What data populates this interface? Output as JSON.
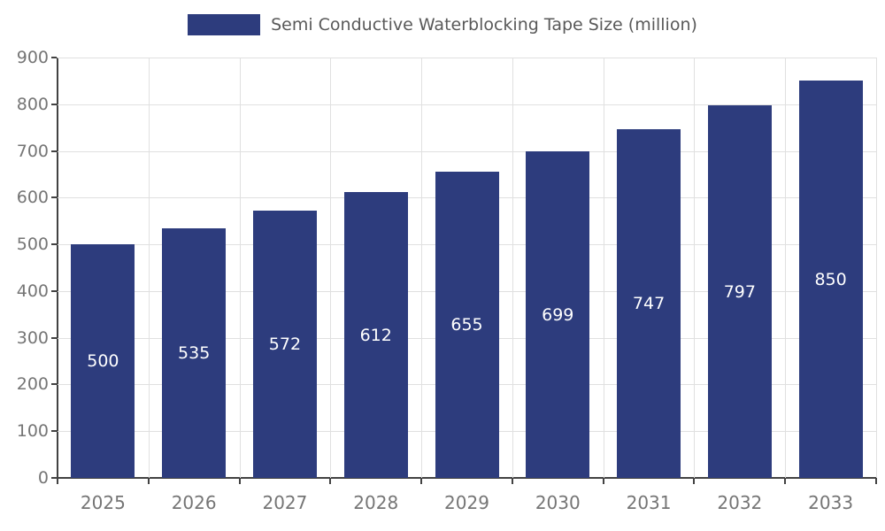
{
  "chart_data": {
    "type": "bar",
    "title": "Semi Conductive Waterblocking Tape Size (million)",
    "categories": [
      "2025",
      "2026",
      "2027",
      "2028",
      "2029",
      "2030",
      "2031",
      "2032",
      "2033"
    ],
    "values": [
      500,
      535,
      572,
      612,
      655,
      699,
      747,
      797,
      850
    ],
    "series_name": "Semi Conductive Waterblocking Tape Size (million)",
    "xlabel": "",
    "ylabel": "",
    "ylim": [
      0,
      900
    ],
    "ytick_step": 100,
    "grid": true,
    "legend_position": "top",
    "colors": {
      "bar": "#2d3c7d",
      "value_label": "#ffffff",
      "grid": "#e0e0e0",
      "axis": "#424242",
      "tick_label": "#757575",
      "legend_text": "#595959",
      "background": "#ffffff"
    }
  }
}
